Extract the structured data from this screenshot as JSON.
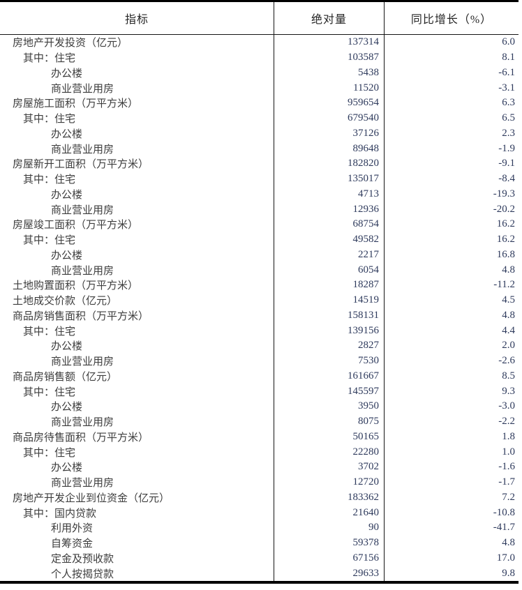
{
  "colors": {
    "border_line": "#000000",
    "inner_line": "#141414",
    "label_text": "#3d3d3d",
    "number_text": "#2e3a5c",
    "header_text": "#262626",
    "background": "#ffffff"
  },
  "chart_data": {
    "type": "table",
    "title": "",
    "columns": [
      "指标",
      "绝对量",
      "同比增长（%）"
    ],
    "rows": [
      {
        "indicator": "房地产开发投资（亿元）",
        "absolute": "137314",
        "growth": "6.0",
        "indent": 1
      },
      {
        "indicator": "其中：住宅",
        "absolute": "103587",
        "growth": "8.1",
        "indent": 2
      },
      {
        "indicator": "办公楼",
        "absolute": "5438",
        "growth": "-6.1",
        "indent": 3
      },
      {
        "indicator": "商业营业用房",
        "absolute": "11520",
        "growth": "-3.1",
        "indent": 3
      },
      {
        "indicator": "房屋施工面积（万平方米）",
        "absolute": "959654",
        "growth": "6.3",
        "indent": 1
      },
      {
        "indicator": "其中：住宅",
        "absolute": "679540",
        "growth": "6.5",
        "indent": 2
      },
      {
        "indicator": "办公楼",
        "absolute": "37126",
        "growth": "2.3",
        "indent": 3
      },
      {
        "indicator": "商业营业用房",
        "absolute": "89648",
        "growth": "-1.9",
        "indent": 3
      },
      {
        "indicator": "房屋新开工面积（万平方米）",
        "absolute": "182820",
        "growth": "-9.1",
        "indent": 1
      },
      {
        "indicator": "其中：住宅",
        "absolute": "135017",
        "growth": "-8.4",
        "indent": 2
      },
      {
        "indicator": "办公楼",
        "absolute": "4713",
        "growth": "-19.3",
        "indent": 3
      },
      {
        "indicator": "商业营业用房",
        "absolute": "12936",
        "growth": "-20.2",
        "indent": 3
      },
      {
        "indicator": "房屋竣工面积（万平方米）",
        "absolute": "68754",
        "growth": "16.2",
        "indent": 1
      },
      {
        "indicator": "其中：住宅",
        "absolute": "49582",
        "growth": "16.2",
        "indent": 2
      },
      {
        "indicator": "办公楼",
        "absolute": "2217",
        "growth": "16.8",
        "indent": 3
      },
      {
        "indicator": "商业营业用房",
        "absolute": "6054",
        "growth": "4.8",
        "indent": 3
      },
      {
        "indicator": "土地购置面积（万平方米）",
        "absolute": "18287",
        "growth": "-11.2",
        "indent": 1
      },
      {
        "indicator": "土地成交价款（亿元）",
        "absolute": "14519",
        "growth": "4.5",
        "indent": 1
      },
      {
        "indicator": "商品房销售面积（万平方米）",
        "absolute": "158131",
        "growth": "4.8",
        "indent": 1
      },
      {
        "indicator": "其中：住宅",
        "absolute": "139156",
        "growth": "4.4",
        "indent": 2
      },
      {
        "indicator": "办公楼",
        "absolute": "2827",
        "growth": "2.0",
        "indent": 3
      },
      {
        "indicator": "商业营业用房",
        "absolute": "7530",
        "growth": "-2.6",
        "indent": 3
      },
      {
        "indicator": "商品房销售额（亿元）",
        "absolute": "161667",
        "growth": "8.5",
        "indent": 1
      },
      {
        "indicator": "其中：住宅",
        "absolute": "145597",
        "growth": "9.3",
        "indent": 2
      },
      {
        "indicator": "办公楼",
        "absolute": "3950",
        "growth": "-3.0",
        "indent": 3
      },
      {
        "indicator": "商业营业用房",
        "absolute": "8075",
        "growth": "-2.2",
        "indent": 3
      },
      {
        "indicator": "商品房待售面积（万平方米）",
        "absolute": "50165",
        "growth": "1.8",
        "indent": 1
      },
      {
        "indicator": "其中：住宅",
        "absolute": "22280",
        "growth": "1.0",
        "indent": 2
      },
      {
        "indicator": "办公楼",
        "absolute": "3702",
        "growth": "-1.6",
        "indent": 3
      },
      {
        "indicator": "商业营业用房",
        "absolute": "12720",
        "growth": "-1.7",
        "indent": 3
      },
      {
        "indicator": "房地产开发企业到位资金（亿元）",
        "absolute": "183362",
        "growth": "7.2",
        "indent": 1
      },
      {
        "indicator": "其中：国内贷款",
        "absolute": "21640",
        "growth": "-10.8",
        "indent": 2
      },
      {
        "indicator": "利用外资",
        "absolute": "90",
        "growth": "-41.7",
        "indent": 3
      },
      {
        "indicator": "自筹资金",
        "absolute": "59378",
        "growth": "4.8",
        "indent": 3
      },
      {
        "indicator": "定金及预收款",
        "absolute": "67156",
        "growth": "17.0",
        "indent": 3
      },
      {
        "indicator": "个人按揭贷款",
        "absolute": "29633",
        "growth": "9.8",
        "indent": 3
      }
    ]
  }
}
